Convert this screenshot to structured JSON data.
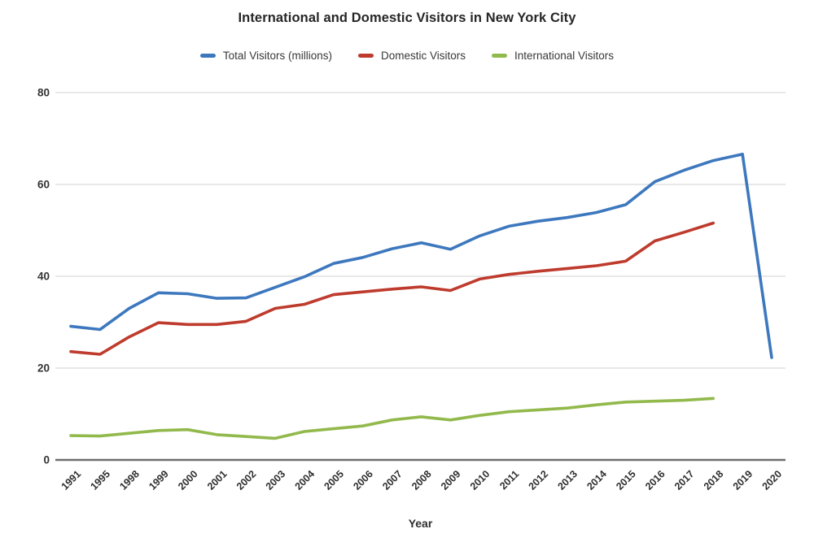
{
  "chart_data": {
    "type": "line",
    "title": "International and Domestic Visitors in New York City",
    "xlabel": "Year",
    "ylabel": "",
    "ylim": [
      0,
      80
    ],
    "y_ticks": [
      0,
      20,
      40,
      60,
      80
    ],
    "grid": "horizontal",
    "legend_position": "top",
    "x_label_rotation": -45,
    "categories": [
      "1991",
      "1995",
      "1998",
      "1999",
      "2000",
      "2001",
      "2002",
      "2003",
      "2004",
      "2005",
      "2006",
      "2007",
      "2008",
      "2009",
      "2010",
      "2011",
      "2012",
      "2013",
      "2014",
      "2015",
      "2016",
      "2017",
      "2018",
      "2019",
      "2020"
    ],
    "series": [
      {
        "name": "Total Visitors (millions)",
        "color": "#3D78BE",
        "values": [
          29.1,
          28.4,
          33.0,
          36.4,
          36.2,
          35.2,
          35.3,
          37.6,
          39.9,
          42.8,
          44.1,
          46.0,
          47.3,
          45.9,
          48.8,
          50.9,
          52.0,
          52.8,
          53.9,
          55.6,
          60.6,
          63.1,
          65.2,
          66.6,
          22.3
        ]
      },
      {
        "name": "Domestic Visitors",
        "color": "#BE3B2D",
        "values": [
          23.6,
          23.0,
          26.8,
          29.9,
          29.5,
          29.5,
          30.2,
          33.0,
          33.9,
          36.0,
          36.6,
          37.2,
          37.7,
          36.9,
          39.4,
          40.4,
          41.1,
          41.7,
          42.3,
          43.3,
          47.7,
          49.6,
          51.6,
          null,
          null
        ]
      },
      {
        "name": "International Visitors",
        "color": "#92B94C",
        "values": [
          5.3,
          5.2,
          5.8,
          6.4,
          6.6,
          5.5,
          5.1,
          4.7,
          6.2,
          6.8,
          7.4,
          8.7,
          9.4,
          8.7,
          9.7,
          10.5,
          10.9,
          11.3,
          12.0,
          12.6,
          12.8,
          13.0,
          13.4,
          null,
          null
        ]
      }
    ]
  },
  "colors": {
    "grid": "#DBDBDB",
    "axis": "#6E6E6E",
    "background": "#FFFFFF"
  }
}
